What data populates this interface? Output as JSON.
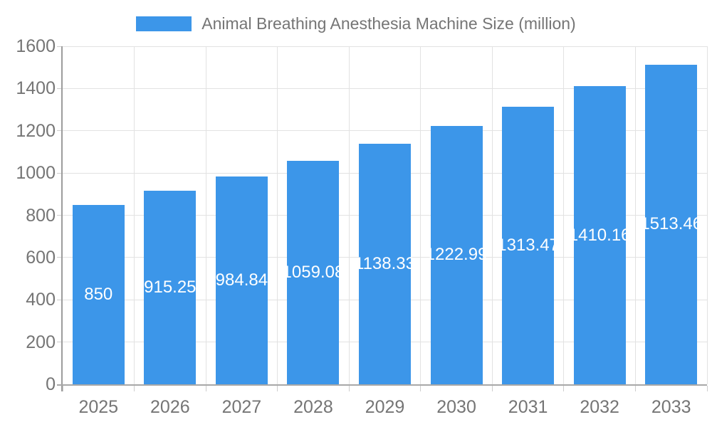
{
  "legend": {
    "label": "Animal Breathing Anesthesia Machine Size (million)"
  },
  "chart_data": {
    "type": "bar",
    "title": "Animal Breathing Anesthesia Machine Size (million)",
    "categories": [
      "2025",
      "2026",
      "2027",
      "2028",
      "2029",
      "2030",
      "2031",
      "2032",
      "2033"
    ],
    "values": [
      850,
      915.25,
      984.84,
      1059.08,
      1138.33,
      1222.99,
      1313.47,
      1410.16,
      1513.46
    ],
    "bar_labels": [
      "850",
      "915.25",
      "984.84",
      "1059.08",
      "1138.33",
      "1222.99",
      "1313.47",
      "1410.16",
      "1513.46"
    ],
    "xlabel": "",
    "ylabel": "",
    "ylim": [
      0,
      1600
    ],
    "y_ticks": [
      0,
      200,
      400,
      600,
      800,
      1000,
      1200,
      1400,
      1600
    ],
    "grid": true,
    "legend_position": "top",
    "colors": {
      "bar": "#3C96E9",
      "grid_line": "#E2E2E2",
      "axis_line": "#A8A8A8",
      "tick_line": "#CDCDCD",
      "axis_text": "#757575",
      "bar_label_text": "#FFFFFF",
      "background": "#FFFFFF"
    }
  }
}
